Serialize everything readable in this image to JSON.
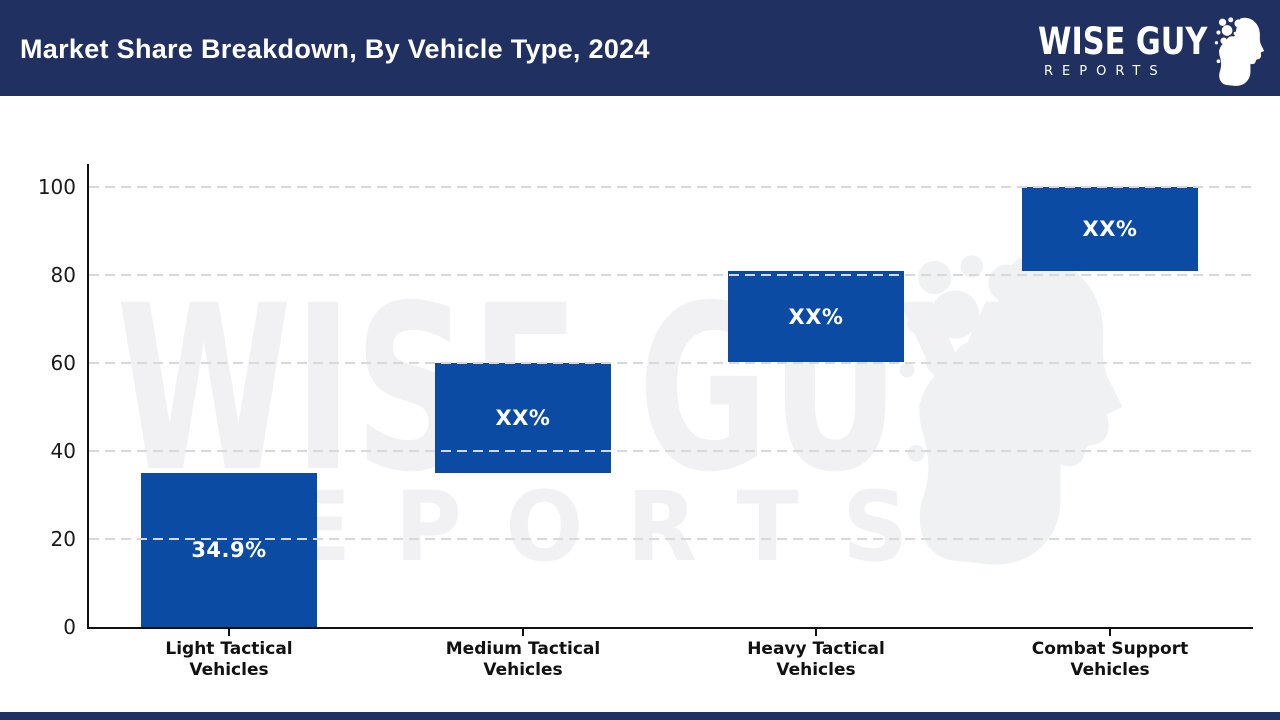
{
  "header": {
    "title": "Market Share Breakdown, By Vehicle Type, 2024",
    "logo": {
      "line1": "WISE GUY",
      "line2": "REPORTS"
    }
  },
  "watermark": {
    "line1": "WISE GUY",
    "line2": "REPORTS"
  },
  "colors": {
    "header_bg": "#203060",
    "bar": "#0B4BA3",
    "gridline": "#D9D9D9",
    "axis": "#111111",
    "watermark": "#F1F1F3",
    "bar_label_text": "#FFFFFF",
    "title_text": "#FFFFFF"
  },
  "chart_data": {
    "type": "bar",
    "subtype": "waterfall",
    "title": "Market Share Breakdown, By Vehicle Type, 2024",
    "xlabel": "",
    "ylabel": "",
    "categories": [
      "Light Tactical Vehicles",
      "Medium Tactical Vehicles",
      "Heavy Tactical Vehicles",
      "Combat Support Vehicles"
    ],
    "segments": [
      {
        "category": "Light Tactical Vehicles",
        "start": 0,
        "end": 34.9,
        "label": "34.9%"
      },
      {
        "category": "Medium Tactical Vehicles",
        "start": 34.9,
        "end": 60.0,
        "label": "XX%"
      },
      {
        "category": "Heavy Tactical Vehicles",
        "start": 60.2,
        "end": 80.8,
        "label": "XX%"
      },
      {
        "category": "Combat Support Vehicles",
        "start": 80.9,
        "end": 100.0,
        "label": "XX%"
      }
    ],
    "yticks": [
      0,
      20,
      40,
      60,
      80,
      100
    ],
    "ylim": [
      0,
      105
    ],
    "grid": "horizontal-dashed",
    "legend": "none"
  }
}
